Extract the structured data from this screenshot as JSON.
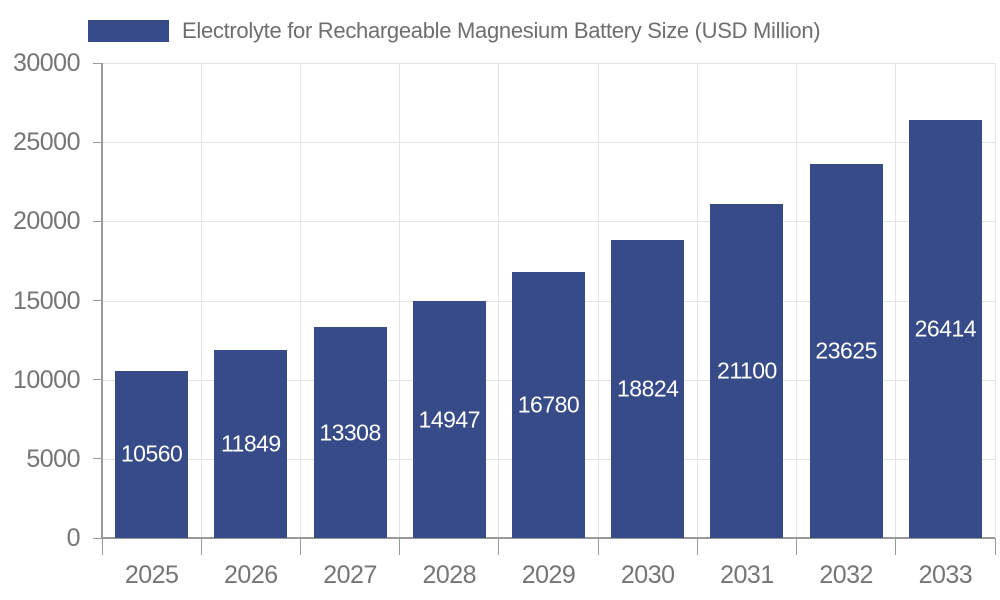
{
  "legend": {
    "label": "Electrolyte for Rechargeable Magnesium Battery Size (USD Million)"
  },
  "chart_data": {
    "type": "bar",
    "title": "Electrolyte for Rechargeable Magnesium Battery Size (USD Million)",
    "categories": [
      "2025",
      "2026",
      "2027",
      "2028",
      "2029",
      "2030",
      "2031",
      "2032",
      "2033"
    ],
    "values": [
      10560,
      11849,
      13308,
      14947,
      16780,
      18824,
      21100,
      23625,
      26414
    ],
    "xlabel": "",
    "ylabel": "",
    "ylim": [
      0,
      30000
    ],
    "yticks": [
      0,
      5000,
      10000,
      15000,
      20000,
      25000,
      30000
    ],
    "grid": "on",
    "legend_position": "top-left",
    "value_labels": "inside-center"
  },
  "colors": {
    "bar": "#374b89",
    "grid": "#e2e2e8",
    "axis": "#999999",
    "tick_label": "#757575",
    "title": "#6e6e6e",
    "value_label": "#ffffff",
    "background": "#ffffff"
  }
}
